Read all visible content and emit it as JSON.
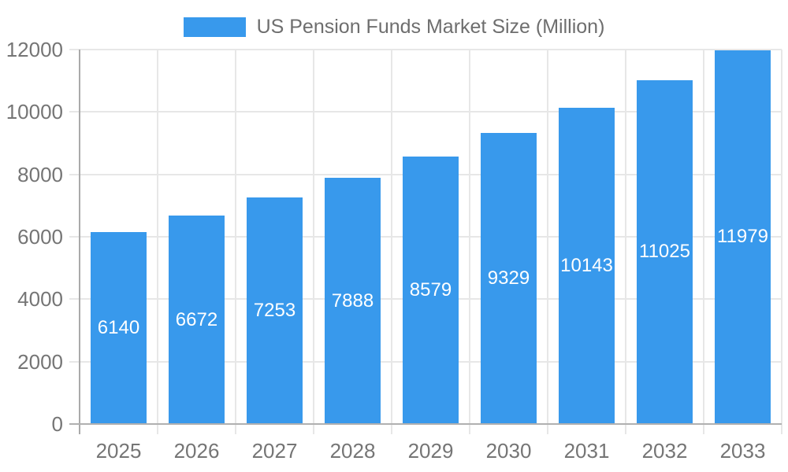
{
  "chart_data": {
    "type": "bar",
    "title": "US Pension Funds Market Size (Million)",
    "legend": {
      "label": "US Pension Funds Market Size (Million)",
      "position": "top-center"
    },
    "categories": [
      "2025",
      "2026",
      "2027",
      "2028",
      "2029",
      "2030",
      "2031",
      "2032",
      "2033"
    ],
    "series": [
      {
        "name": "US Pension Funds Market Size (Million)",
        "values": [
          6140,
          6672,
          7253,
          7888,
          8579,
          9329,
          10143,
          11025,
          11979
        ]
      }
    ],
    "bar_value_labels": [
      "6140",
      "6672",
      "7253",
      "7888",
      "8579",
      "9329",
      "10143",
      "11025",
      "11979"
    ],
    "value_labels_inside_bars": true,
    "xlabel": "",
    "ylabel": "",
    "ylim": [
      0,
      12000
    ],
    "y_ticks": [
      0,
      2000,
      4000,
      6000,
      8000,
      10000,
      12000
    ],
    "y_tick_labels": [
      "0",
      "2000",
      "4000",
      "6000",
      "8000",
      "10000",
      "12000"
    ],
    "grid": true,
    "grid_vertical_at_category_boundaries": true,
    "colors": {
      "bar": "#3899ec",
      "grid": "#e7e7e7",
      "axis": "#aaaaaa",
      "tick_text": "#757575",
      "legend_text": "#6e6e6e",
      "value_label_text": "#ffffff",
      "background": "#ffffff"
    }
  }
}
